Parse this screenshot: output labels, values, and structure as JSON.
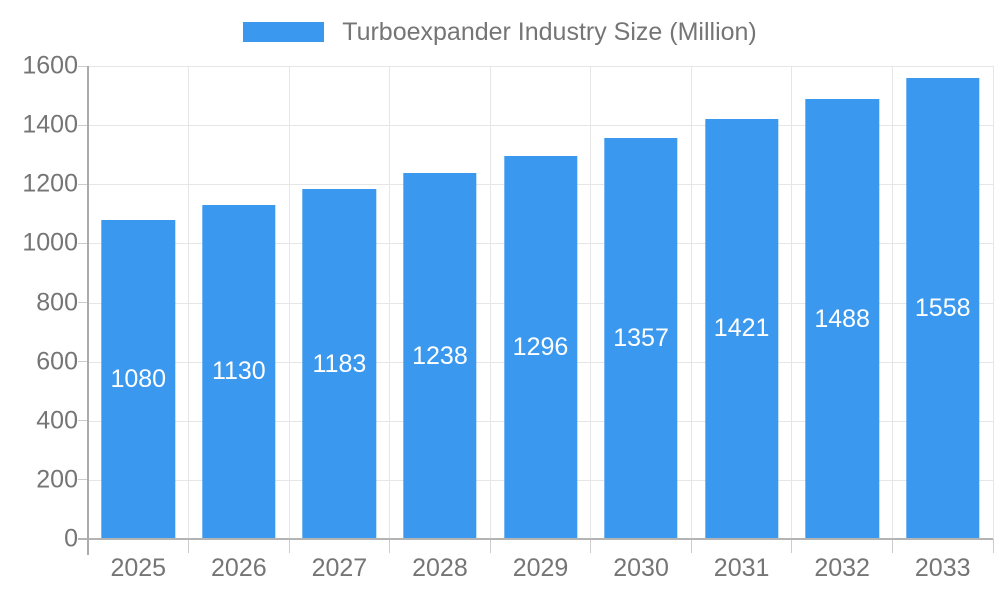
{
  "chart_data": {
    "type": "bar",
    "title": "Turboexpander Industry Size (Million)",
    "categories": [
      "2025",
      "2026",
      "2027",
      "2028",
      "2029",
      "2030",
      "2031",
      "2032",
      "2033"
    ],
    "series": [
      {
        "name": "Turboexpander Industry Size (Million)",
        "values": [
          1080,
          1130,
          1183,
          1238,
          1296,
          1357,
          1421,
          1488,
          1558
        ]
      }
    ],
    "xlabel": "",
    "ylabel": "",
    "ylim": [
      0,
      1600
    ],
    "yticks": [
      0,
      200,
      400,
      600,
      800,
      1000,
      1200,
      1400,
      1600
    ],
    "grid": true,
    "legend_position": "top",
    "bar_labels_visible": true,
    "bar_label_position": "center-inside"
  },
  "colors": {
    "bar": "#3a99ee",
    "grid": "#e6e6e6",
    "axis": "#ababab",
    "baseline": "#b4b4b4",
    "tick": "#cccccc",
    "label_text": "#757575",
    "bar_label_text": "#ffffff",
    "background": "#ffffff"
  }
}
